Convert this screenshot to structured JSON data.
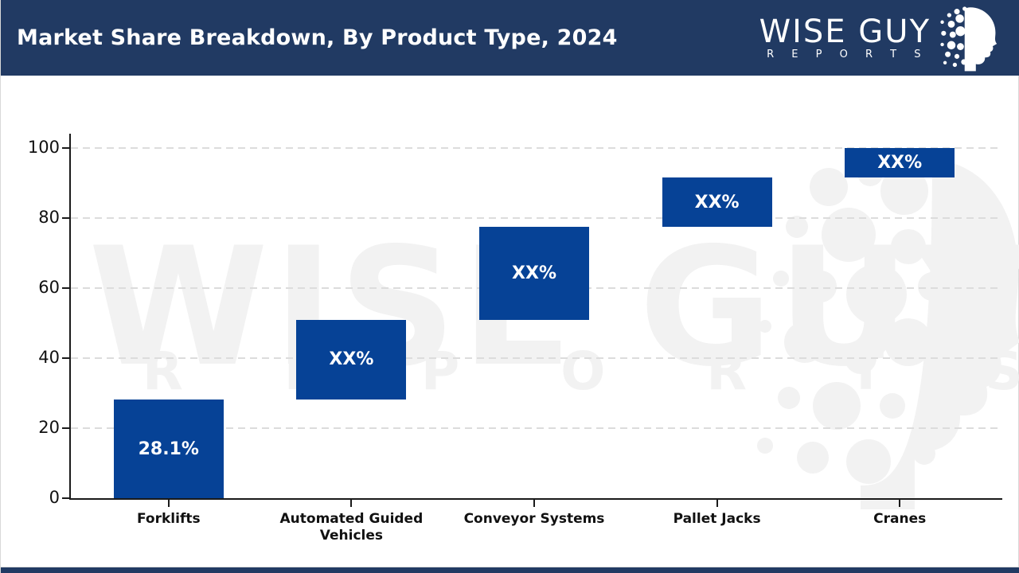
{
  "header": {
    "title": "Market Share Breakdown, By Product Type, 2024",
    "background_color": "#213a63",
    "logo": {
      "wordmark": "WISE GUY",
      "subtext": "R E P O R T S"
    }
  },
  "watermark": {
    "wordmark": "WISE GUY",
    "subtext": "R E P O R T S"
  },
  "chart_data": {
    "type": "bar",
    "subtype": "waterfall",
    "title": "Market Share Breakdown, By Product Type, 2024",
    "categories": [
      "Forklifts",
      "Automated Guided Vehicles",
      "Conveyor Systems",
      "Pallet Jacks",
      "Cranes"
    ],
    "segments": [
      {
        "category": "Forklifts",
        "start": 0,
        "end": 28.1,
        "label": "28.1%"
      },
      {
        "category": "Automated Guided Vehicles",
        "start": 28.1,
        "end": 51.0,
        "label": "XX%"
      },
      {
        "category": "Conveyor Systems",
        "start": 51.0,
        "end": 77.4,
        "label": "XX%"
      },
      {
        "category": "Pallet Jacks",
        "start": 77.4,
        "end": 91.6,
        "label": "XX%"
      },
      {
        "category": "Cranes",
        "start": 91.6,
        "end": 100.0,
        "label": "XX%"
      }
    ],
    "y_ticks": [
      0,
      20,
      40,
      60,
      80,
      100
    ],
    "ylim": [
      0,
      105
    ],
    "xlabel": "",
    "ylabel": "",
    "grid": "horizontal-dashed",
    "legend": "none",
    "bar_color": "#064296",
    "bar_label_color": "#ffffff",
    "axis_color": "#1a1a1a",
    "gridline_color": "#dcdcdc"
  },
  "footer": {
    "background_color": "#213a63"
  }
}
